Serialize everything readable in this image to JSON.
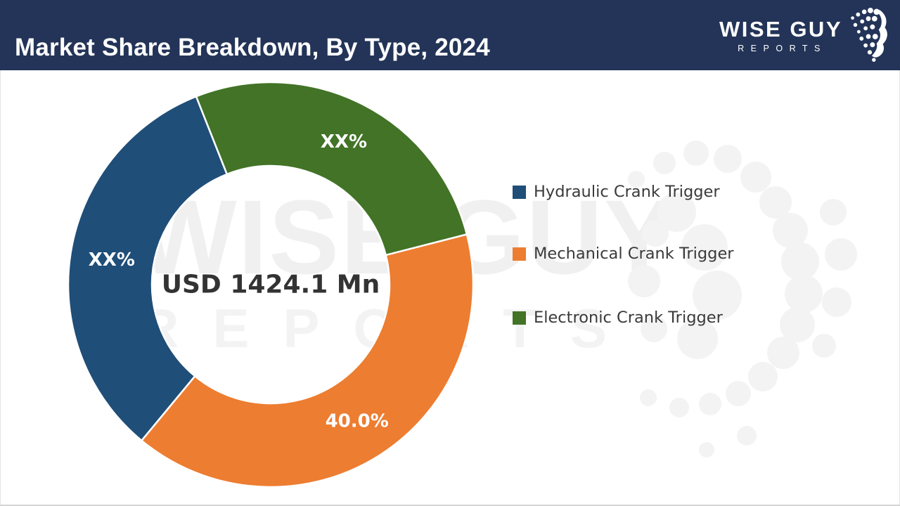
{
  "header": {
    "title": "Market Share Breakdown, By Type, 2024",
    "logo": {
      "line1": "WISE GUY",
      "line2": "REPORTS"
    }
  },
  "watermark": {
    "line1": "WISE GUY",
    "line2": "REPORTS"
  },
  "chart_data": {
    "type": "pie",
    "subtype": "donut",
    "title": "Market Share Breakdown, By Type, 2024",
    "center_label": "USD 1424.1 Mn",
    "categories": [
      "Hydraulic Crank Trigger",
      "Mechanical Crank Trigger",
      "Electronic Crank Trigger"
    ],
    "values_pct": [
      33,
      40,
      27
    ],
    "display_labels": [
      "XX%",
      "40.0%",
      "XX%"
    ],
    "colors": [
      "#1F4E78",
      "#ED7D31",
      "#427326"
    ],
    "start_angle_deg_from_top": -21.6,
    "direction": "counterclockwise",
    "inner_radius_ratio": 0.587,
    "legend_position": "right",
    "legend_items": [
      {
        "label": "Hydraulic Crank Trigger",
        "color": "#1F4E78"
      },
      {
        "label": "Mechanical Crank Trigger",
        "color": "#ED7D31"
      },
      {
        "label": "Electronic Crank Trigger",
        "color": "#427326"
      }
    ]
  },
  "colors": {
    "header_bg": "#233458",
    "center_text": "#333333",
    "legend_text": "#3a3a3a",
    "watermark": "#f0f0f0",
    "bottom_border": "#d4d4d4"
  }
}
